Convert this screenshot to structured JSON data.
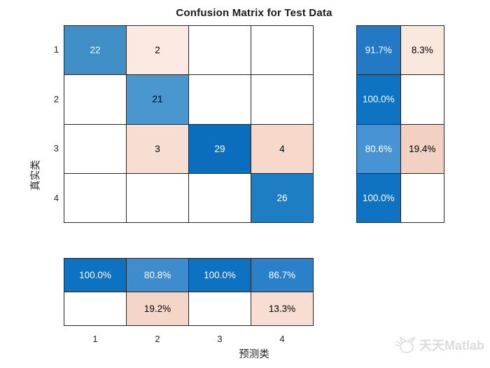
{
  "title": "Confusion Matrix for Test Data",
  "axes": {
    "x_label": "预测类",
    "y_label": "真实类",
    "x_ticks": [
      "1",
      "2",
      "3",
      "4"
    ],
    "y_ticks": [
      "1",
      "2",
      "3",
      "4"
    ]
  },
  "colors": {
    "border": "#262626",
    "diagonal_dark_blue": "#0B6DBD",
    "offdiagonal_pink": "#F6D9CB",
    "background": "#FFFFFF"
  },
  "chart_data": {
    "type": "heatmap",
    "title": "Confusion Matrix for Test Data",
    "xlabel": "预测类",
    "ylabel": "真实类",
    "classes": [
      "1",
      "2",
      "3",
      "4"
    ],
    "matrix": [
      [
        22,
        2,
        0,
        0
      ],
      [
        0,
        21,
        0,
        0
      ],
      [
        0,
        3,
        29,
        4
      ],
      [
        0,
        0,
        0,
        26
      ]
    ],
    "row_summary_pct": [
      [
        91.7,
        8.3
      ],
      [
        100.0,
        null
      ],
      [
        80.6,
        19.4
      ],
      [
        100.0,
        null
      ]
    ],
    "col_summary_pct": [
      [
        100.0,
        80.8,
        100.0,
        86.7
      ],
      [
        null,
        19.2,
        null,
        13.3
      ]
    ],
    "legend_position": "none",
    "grid": true
  },
  "main_cells": [
    {
      "text": "22",
      "bg": "#3F8EC5",
      "fg": "#FFFFFF"
    },
    {
      "text": "2",
      "bg": "#FBE9E2",
      "fg": "#000000"
    },
    {
      "text": "",
      "bg": "#FFFFFF",
      "fg": "#000000"
    },
    {
      "text": "",
      "bg": "#FFFFFF",
      "fg": "#000000"
    },
    {
      "text": "",
      "bg": "#FFFFFF",
      "fg": "#000000"
    },
    {
      "text": "21",
      "bg": "#4A96CE",
      "fg": "#000000"
    },
    {
      "text": "",
      "bg": "#FFFFFF",
      "fg": "#000000"
    },
    {
      "text": "",
      "bg": "#FFFFFF",
      "fg": "#000000"
    },
    {
      "text": "",
      "bg": "#FFFFFF",
      "fg": "#000000"
    },
    {
      "text": "3",
      "bg": "#F8DED2",
      "fg": "#000000"
    },
    {
      "text": "29",
      "bg": "#0B6DBD",
      "fg": "#FFFFFF"
    },
    {
      "text": "4",
      "bg": "#F6D9CB",
      "fg": "#000000"
    },
    {
      "text": "",
      "bg": "#FFFFFF",
      "fg": "#000000"
    },
    {
      "text": "",
      "bg": "#FFFFFF",
      "fg": "#000000"
    },
    {
      "text": "",
      "bg": "#FFFFFF",
      "fg": "#000000"
    },
    {
      "text": "26",
      "bg": "#1D7EC4",
      "fg": "#FFFFFF"
    }
  ],
  "row_summary_cells": [
    {
      "text": "91.7%",
      "bg": "#2379C4",
      "fg": "#FFFFFF"
    },
    {
      "text": "8.3%",
      "bg": "#FAE8DF",
      "fg": "#000000"
    },
    {
      "text": "100.0%",
      "bg": "#0E73C2",
      "fg": "#FFFFFF"
    },
    {
      "text": "",
      "bg": "#FFFFFF",
      "fg": "#000000"
    },
    {
      "text": "80.6%",
      "bg": "#4893D3",
      "fg": "#FFFFFF"
    },
    {
      "text": "19.4%",
      "bg": "#F2D1C2",
      "fg": "#000000"
    },
    {
      "text": "100.0%",
      "bg": "#0E73C2",
      "fg": "#FFFFFF"
    },
    {
      "text": "",
      "bg": "#FFFFFF",
      "fg": "#000000"
    }
  ],
  "col_summary_cells": [
    {
      "text": "100.0%",
      "bg": "#0D72C1",
      "fg": "#FFFFFF"
    },
    {
      "text": "80.8%",
      "bg": "#3E8CCE",
      "fg": "#FFFFFF"
    },
    {
      "text": "100.0%",
      "bg": "#0D72C1",
      "fg": "#FFFFFF"
    },
    {
      "text": "86.7%",
      "bg": "#2B81C9",
      "fg": "#FFFFFF"
    },
    {
      "text": "",
      "bg": "#FFFFFF",
      "fg": "#000000"
    },
    {
      "text": "19.2%",
      "bg": "#F4D5C8",
      "fg": "#000000"
    },
    {
      "text": "",
      "bg": "#FFFFFF",
      "fg": "#000000"
    },
    {
      "text": "13.3%",
      "bg": "#F7DDD2",
      "fg": "#000000"
    }
  ],
  "watermark": {
    "text": "天天Matlab"
  }
}
